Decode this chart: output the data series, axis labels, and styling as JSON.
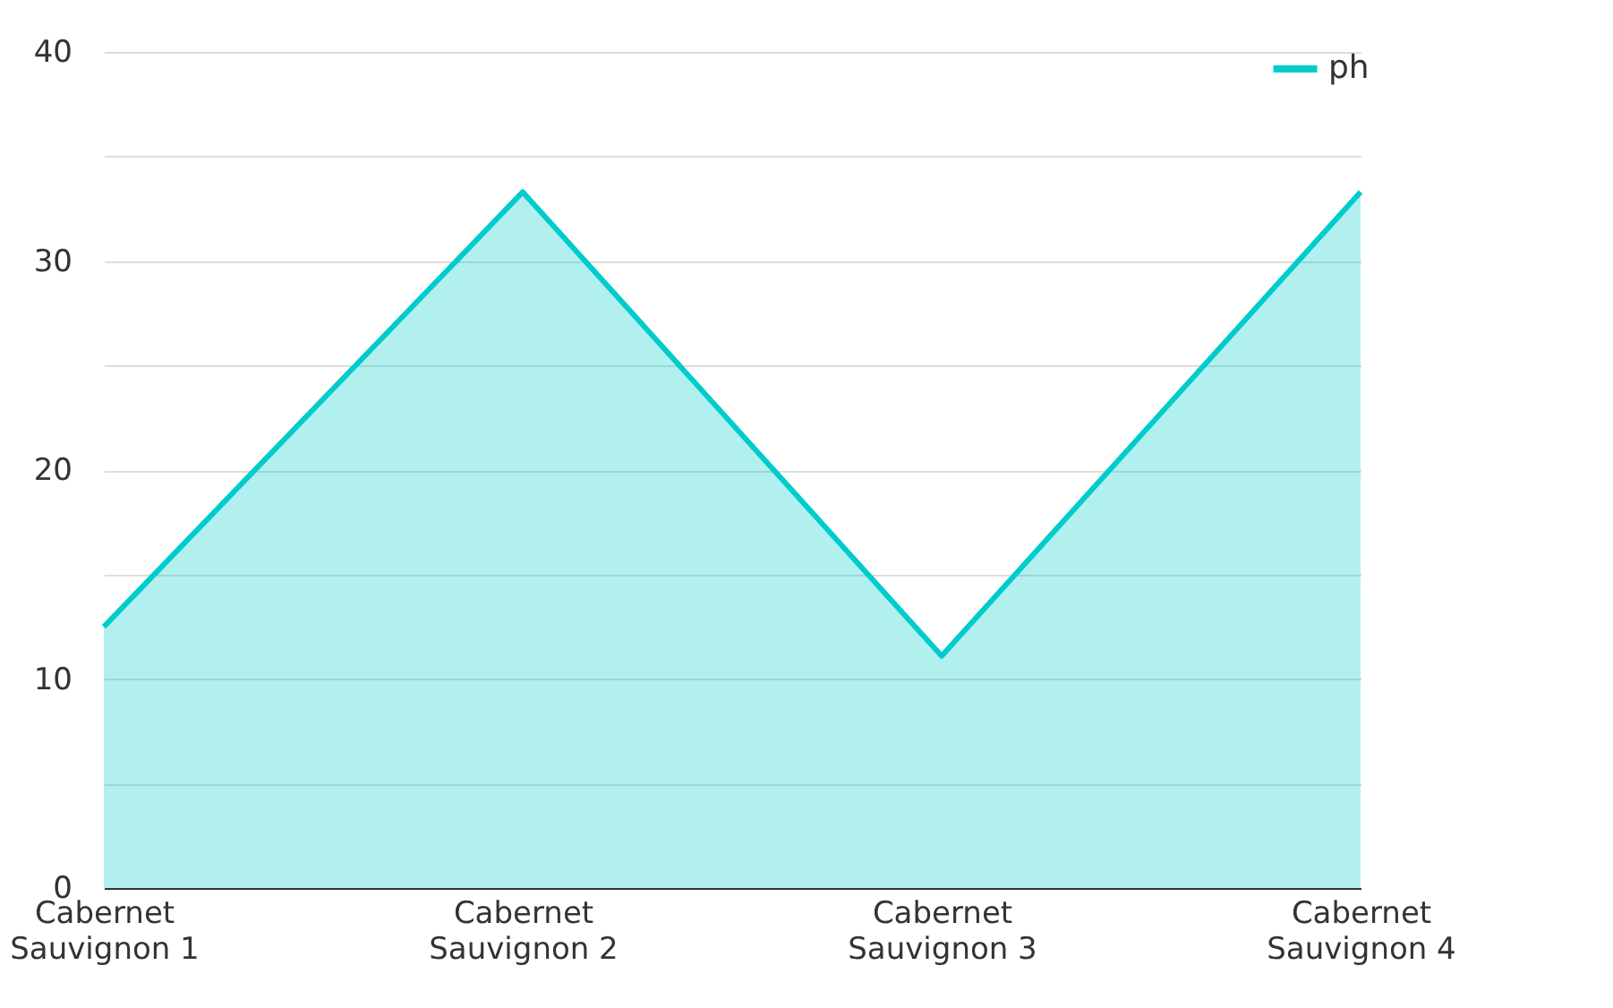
{
  "chart_data": {
    "type": "area",
    "categories": [
      "Cabernet Sauvignon 1",
      "Cabernet Sauvignon 2",
      "Cabernet Sauvignon 3",
      "Cabernet Sauvignon 4"
    ],
    "series": [
      {
        "name": "ph",
        "color": "#00cccc",
        "values": [
          12.5,
          33.3,
          11.1,
          33.3
        ]
      }
    ],
    "ylim": [
      0,
      40
    ],
    "yticks": [
      0,
      {
        "value": 5,
        "label": null
      },
      10,
      {
        "value": 15,
        "label": null
      },
      20,
      {
        "value": 25,
        "label": null
      },
      30,
      {
        "value": 35,
        "label": null
      },
      40
    ],
    "grid": "y",
    "legend": "top right"
  }
}
